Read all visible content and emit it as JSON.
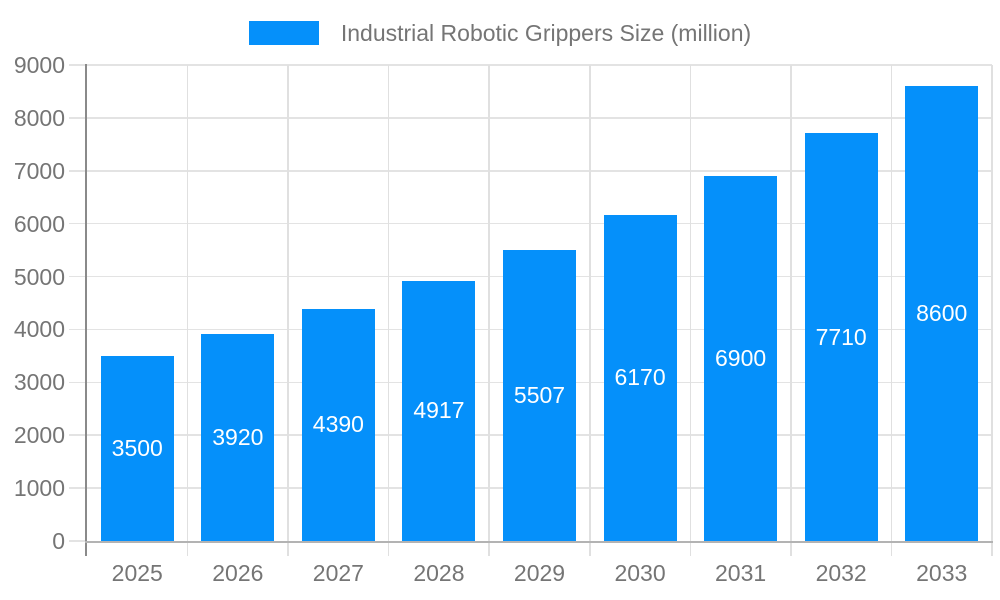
{
  "legend": {
    "label": "Industrial Robotic Grippers Size (million)",
    "swatch_color": "#0590fa"
  },
  "chart_data": {
    "type": "bar",
    "title": "Industrial Robotic Grippers Size (million)",
    "series_name": "Industrial Robotic Grippers Size (million)",
    "categories": [
      "2025",
      "2026",
      "2027",
      "2028",
      "2029",
      "2030",
      "2031",
      "2032",
      "2033"
    ],
    "values": [
      3500,
      3920,
      4390,
      4917,
      5507,
      6170,
      6900,
      7710,
      8600
    ],
    "xlabel": "",
    "ylabel": "",
    "ylim": [
      0,
      9000
    ],
    "ytick_interval": 1000,
    "yticks": [
      "0",
      "1000",
      "2000",
      "3000",
      "4000",
      "5000",
      "6000",
      "7000",
      "8000",
      "9000"
    ],
    "grid": true,
    "legend_position": "top",
    "bar_color": "#0590fa",
    "bar_label_color": "#ffffff",
    "axis_text_color": "#757575",
    "grid_color": "#e3e3e3",
    "vgrid_color": "#e0e0e0",
    "baseline_color": "#b3b3b3",
    "yaxis_line_color": "#8a8a8a",
    "background_color": "#ffffff"
  }
}
